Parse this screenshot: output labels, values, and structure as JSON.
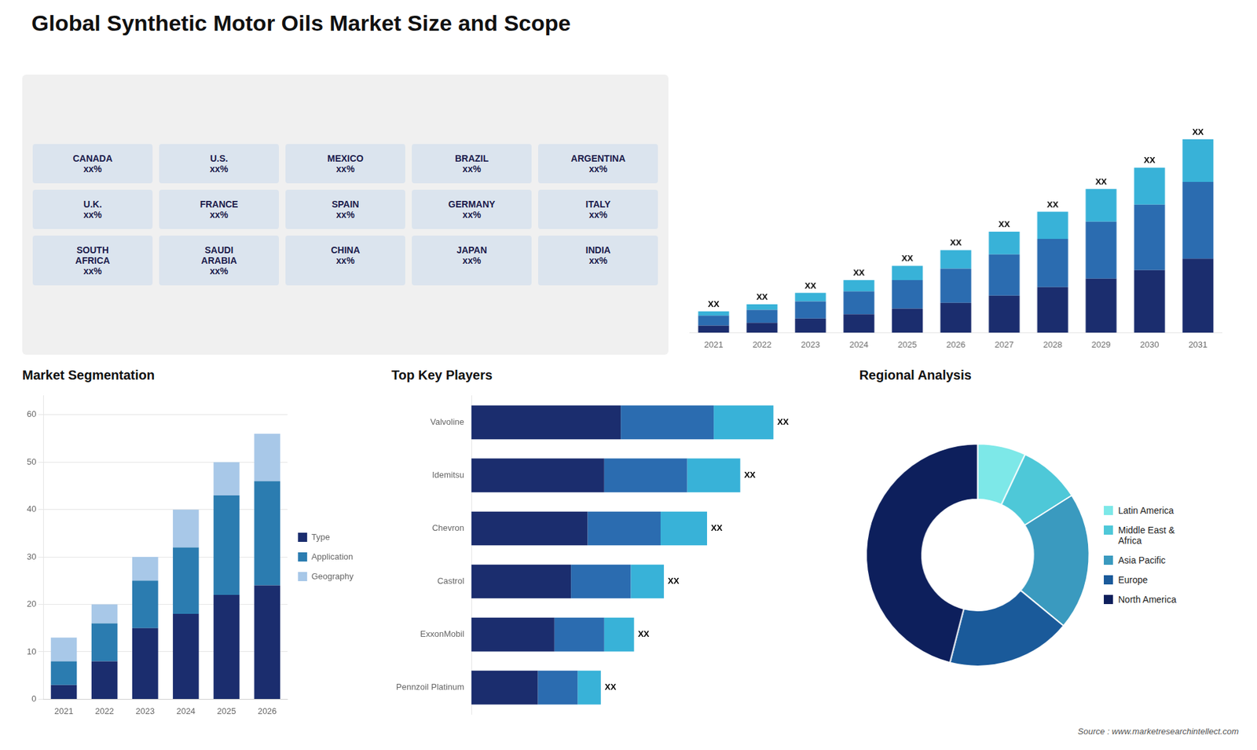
{
  "title": "Global Synthetic Motor Oils Market Size and Scope",
  "annotations": [
    "Source : www.marketresearchintellect.com"
  ],
  "chart_data": [
    {
      "type": "map",
      "annotations": [
        "CANADA\nxx%",
        "U.S.\nxx%",
        "MEXICO\nxx%",
        "BRAZIL\nxx%",
        "ARGENTINA\nxx%",
        "U.K.\nxx%",
        "FRANCE\nxx%",
        "SPAIN\nxx%",
        "GERMANY\nxx%",
        "ITALY\nxx%",
        "SOUTH\nAFRICA\nxx%",
        "SAUDI\nARABIA\nxx%",
        "CHINA\nxx%",
        "JAPAN\nxx%",
        "INDIA\nxx%"
      ]
    },
    {
      "type": "bar",
      "stacked": true,
      "categories": [
        2021,
        2022,
        2023,
        2024,
        2025,
        2026,
        2027,
        2028,
        2029,
        2030,
        2031
      ],
      "series": [
        {
          "color": "#1b2d6e",
          "values": [
            2.5,
            3.5,
            5,
            6.5,
            8.5,
            10.5,
            13,
            16,
            19,
            22,
            26
          ]
        },
        {
          "color": "#2b6cb0",
          "values": [
            3.5,
            4.5,
            6,
            8,
            10,
            12,
            14.5,
            17,
            20,
            23,
            27
          ]
        },
        {
          "color": "#38b2d8",
          "values": [
            1.5,
            2,
            3,
            4,
            5,
            6.5,
            8,
            9.5,
            11.5,
            13,
            15
          ]
        }
      ],
      "value_labels": [
        "XX",
        "XX",
        "XX",
        "XX",
        "XX",
        "XX",
        "XX",
        "XX",
        "XX",
        "XX",
        "XX"
      ],
      "ylim": [
        0,
        88.4
      ],
      "tick_labels": "x",
      "grid": false
    },
    {
      "type": "bar",
      "title": "Market Segmentation",
      "stacked": true,
      "categories": [
        2021,
        2022,
        2023,
        2024,
        2025,
        2026
      ],
      "series": [
        {
          "name": "Type",
          "color": "#1b2d6e",
          "values": [
            3,
            8,
            15,
            18,
            22,
            24
          ]
        },
        {
          "name": "Application",
          "color": "#2b7cb0",
          "values": [
            5,
            8,
            10,
            14,
            21,
            22
          ]
        },
        {
          "name": "Geography",
          "color": "#a8c8e8",
          "values": [
            5,
            4,
            5,
            8,
            7,
            10
          ]
        }
      ],
      "ylim": [
        0,
        64
      ],
      "yticks": [
        0,
        10,
        20,
        30,
        40,
        50,
        60
      ],
      "grid": true,
      "legend": "right"
    },
    {
      "type": "bar",
      "title": "Top Key Players",
      "stacked": true,
      "orientation": "horizontal",
      "categories": [
        "Valvoline",
        "Idemitsu",
        "Chevron",
        "Castrol",
        "ExxonMobil",
        "Pennzoil Platinum"
      ],
      "series": [
        {
          "color": "#1b2d6e",
          "values": [
            4.5,
            4.0,
            3.5,
            3.0,
            2.5,
            2.0
          ]
        },
        {
          "color": "#2b6cb0",
          "values": [
            2.8,
            2.5,
            2.2,
            1.8,
            1.5,
            1.2
          ]
        },
        {
          "color": "#38b2d8",
          "values": [
            1.8,
            1.6,
            1.4,
            1.0,
            0.9,
            0.7
          ]
        }
      ],
      "value_labels": [
        "XX",
        "XX",
        "XX",
        "XX",
        "XX",
        "XX"
      ],
      "xlim": [
        0,
        10.738
      ],
      "tick_labels": "y",
      "grid": false
    },
    {
      "type": "doughnut",
      "title": "Regional Analysis",
      "categories": [
        "Latin America",
        "Middle East &\nAfrica",
        "Asia Pacific",
        "Europe",
        "North America"
      ],
      "values": [
        7,
        9,
        20,
        18,
        46
      ],
      "colors": [
        "#7de8e8",
        "#4ec8d8",
        "#3a9abf",
        "#1a5a9a",
        "#0d1f5c"
      ],
      "legend": "right"
    }
  ]
}
